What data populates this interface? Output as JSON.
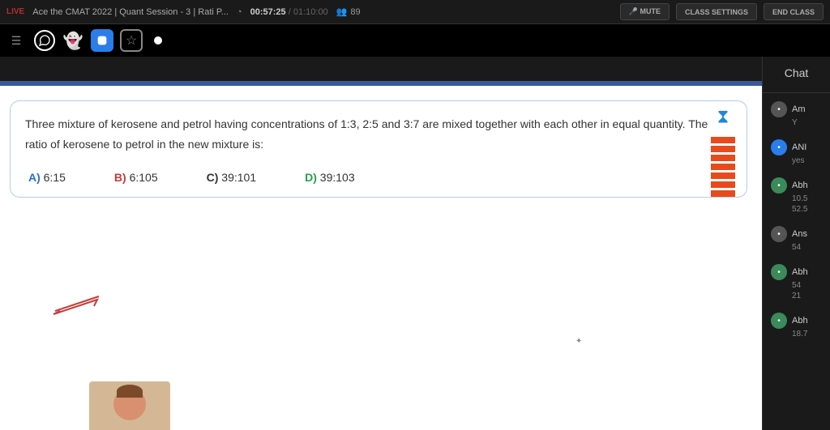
{
  "topbar": {
    "live": "LIVE",
    "title": "Ace the CMAT 2022 | Quant Session - 3 | Rati P...",
    "elapsed": "00:57:25",
    "total": "01:10:00",
    "participants": "89",
    "mute": "MUTE",
    "settings": "CLASS SETTINGS",
    "end": "END CLASS"
  },
  "question": {
    "text": "Three mixture of kerosene and petrol having concentrations of 1:3, 2:5 and 3:7 are mixed together with each other in equal quantity. The ratio of kerosene to petrol in the new mixture is:",
    "options": {
      "a": {
        "letter": "A)",
        "text": " 6:15"
      },
      "b": {
        "letter": "B)",
        "text": " 6:105"
      },
      "c": {
        "letter": "C)",
        "text": " 39:101"
      },
      "d": {
        "letter": "D)",
        "text": " 39:103"
      }
    }
  },
  "chat": {
    "header": "Chat",
    "items": [
      {
        "name": "Am",
        "msg": "Y",
        "avatar": "gray"
      },
      {
        "name": "ANI",
        "msg": "yes",
        "avatar": "blue"
      },
      {
        "name": "Abh",
        "msg": "10.5\n52.5",
        "avatar": "green"
      },
      {
        "name": "Ans",
        "msg": "54",
        "avatar": "gray"
      },
      {
        "name": "Abh",
        "msg": "54\n21",
        "avatar": "green"
      },
      {
        "name": "Abh",
        "msg": "18.7",
        "avatar": "green"
      }
    ]
  }
}
